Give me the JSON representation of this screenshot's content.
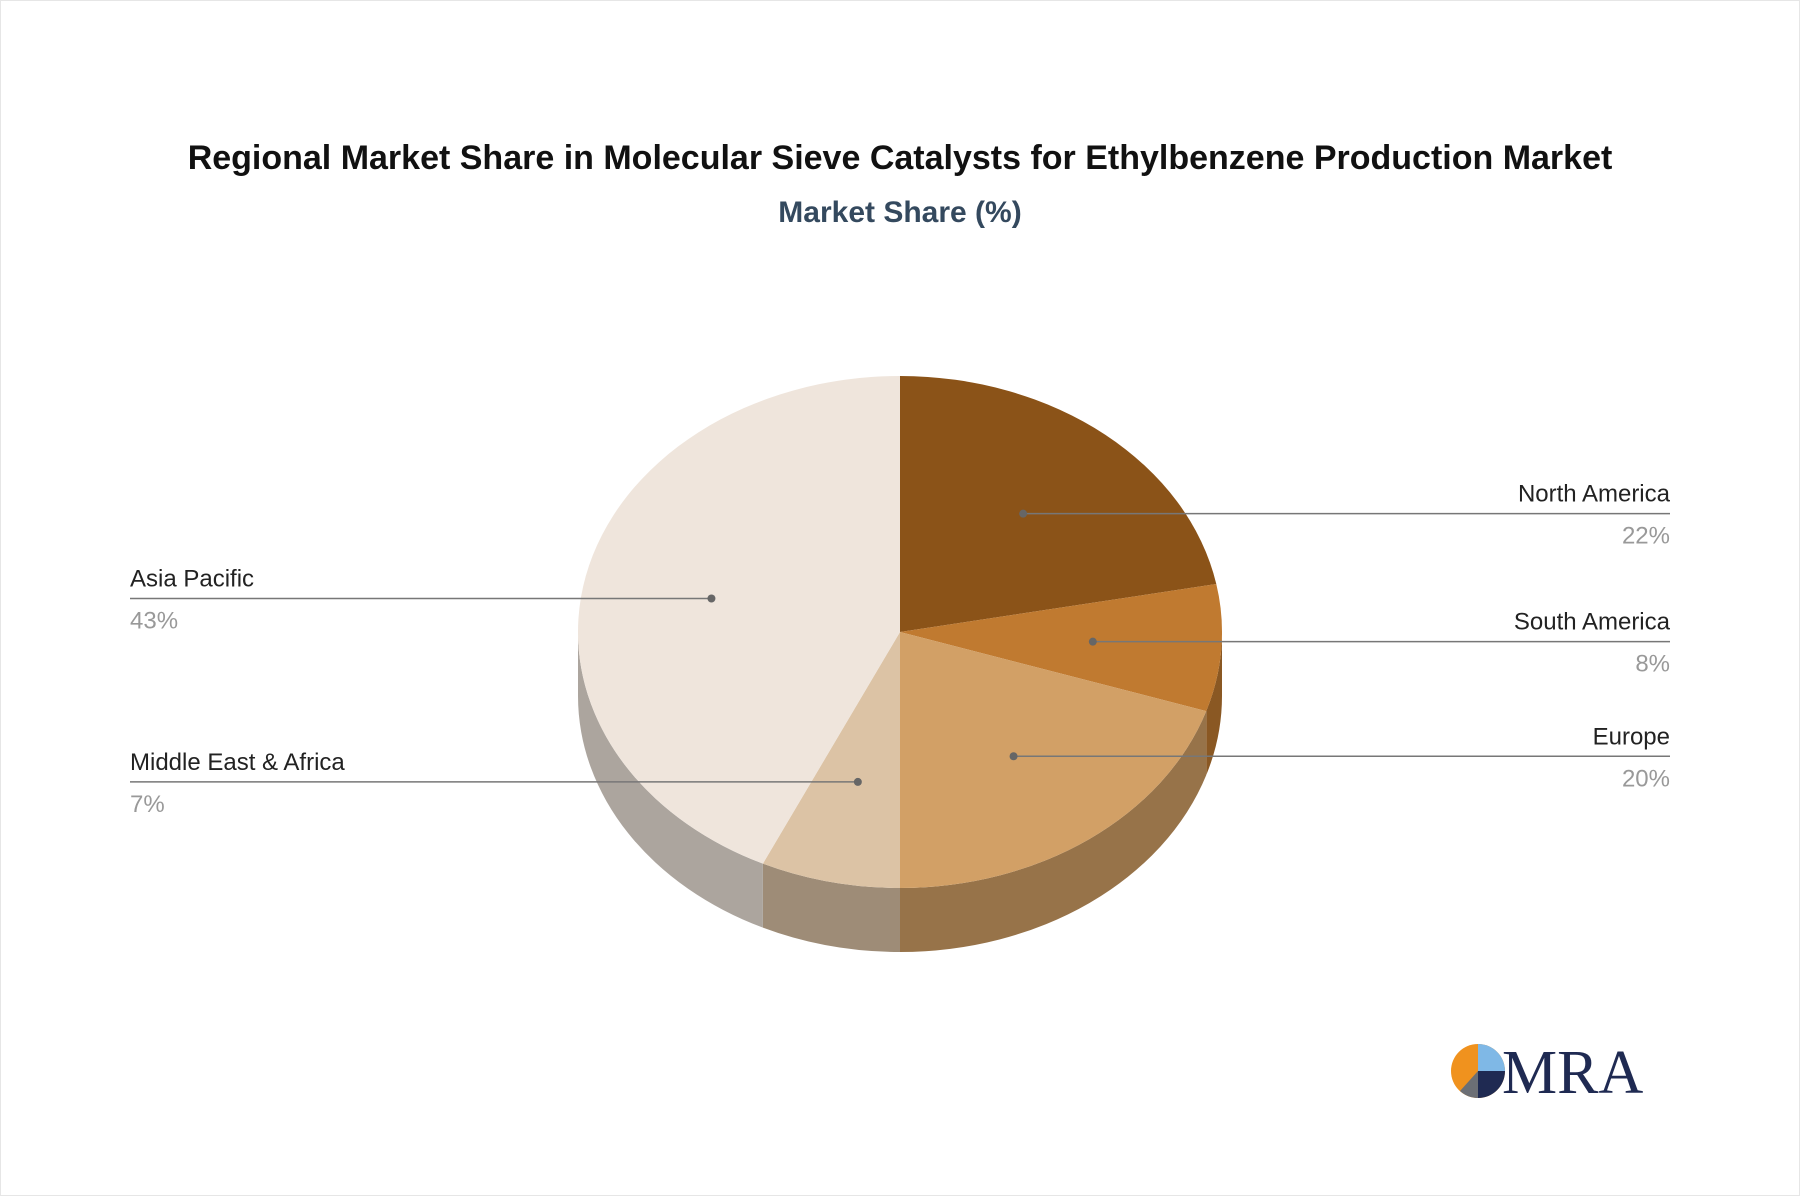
{
  "chart_data": {
    "type": "pie",
    "title": "Regional Market Share in Molecular Sieve Catalysts for Ethylbenzene Production Market",
    "subtitle": "Market Share (%)",
    "value_suffix": "%",
    "slices": [
      {
        "label": "North America",
        "value": 22,
        "color": "#8b5318"
      },
      {
        "label": "South America",
        "value": 8,
        "color": "#c07a30"
      },
      {
        "label": "Europe",
        "value": 20,
        "color": "#d2a066"
      },
      {
        "label": "Middle East & Africa",
        "value": 7,
        "color": "#dcc3a5"
      },
      {
        "label": "Asia Pacific",
        "value": 43,
        "color": "#efe5dc"
      }
    ]
  },
  "branding": {
    "logo_text": "MRA"
  }
}
